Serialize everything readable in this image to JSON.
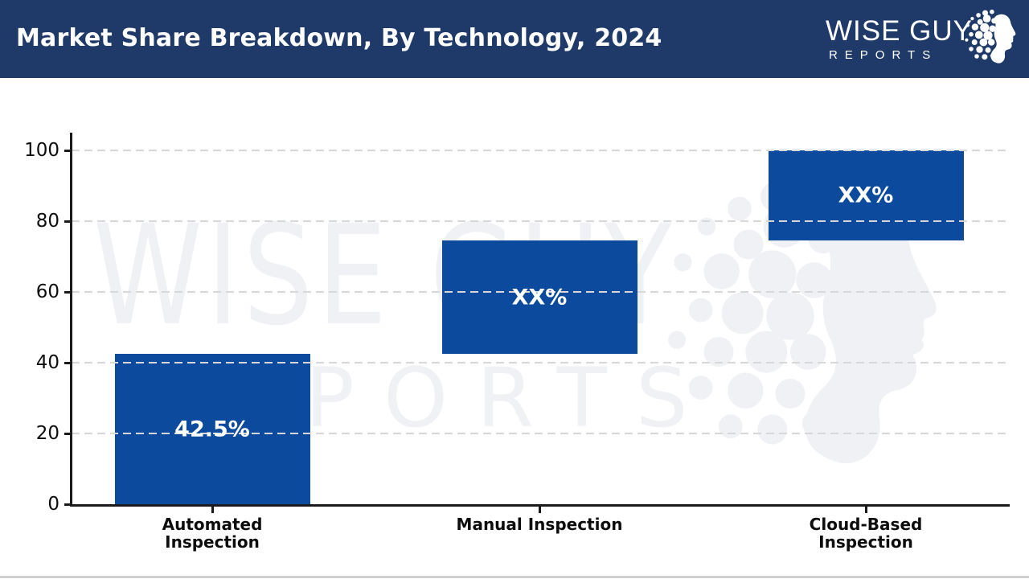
{
  "header": {
    "title": "Market Share Breakdown, By Technology, 2024",
    "logo": {
      "line1": "WISE GUY",
      "line2": "REPORTS"
    }
  },
  "watermark": {
    "line1": "WISE GUY",
    "line2": "REPORTS"
  },
  "colors": {
    "header_background": "#1f3a68",
    "bar_blue": "#0c4a9e",
    "bar_label_white": "#ffffff",
    "gridline_gray": "#d8d8d8",
    "axis_black": "#1a1a1a",
    "watermark_gray": "#f0f1f4"
  },
  "chart_data": {
    "type": "bar",
    "subtype": "waterfall",
    "title": "Market Share Breakdown, By Technology, 2024",
    "xlabel": "",
    "ylabel": "",
    "ylim": [
      0,
      105
    ],
    "yticks": [
      0,
      20,
      40,
      60,
      80,
      100
    ],
    "grid": "horizontal-dashed",
    "legend": "none",
    "bar_color": "#0c4a9e",
    "categories": [
      "Automated Inspection",
      "Manual Inspection",
      "Cloud-Based Inspection"
    ],
    "category_lines": [
      [
        "Automated",
        "Inspection"
      ],
      [
        "Manual Inspection"
      ],
      [
        "Cloud-Based",
        "Inspection"
      ]
    ],
    "segments": [
      {
        "category": "Automated Inspection",
        "label": "42.5%",
        "start": 0,
        "end": 42.5,
        "value_masked": false
      },
      {
        "category": "Manual Inspection",
        "label": "XX%",
        "start": 42.5,
        "end": 74.5,
        "value_masked": true
      },
      {
        "category": "Cloud-Based Inspection",
        "label": "XX%",
        "start": 74.5,
        "end": 100,
        "value_masked": true
      }
    ]
  }
}
